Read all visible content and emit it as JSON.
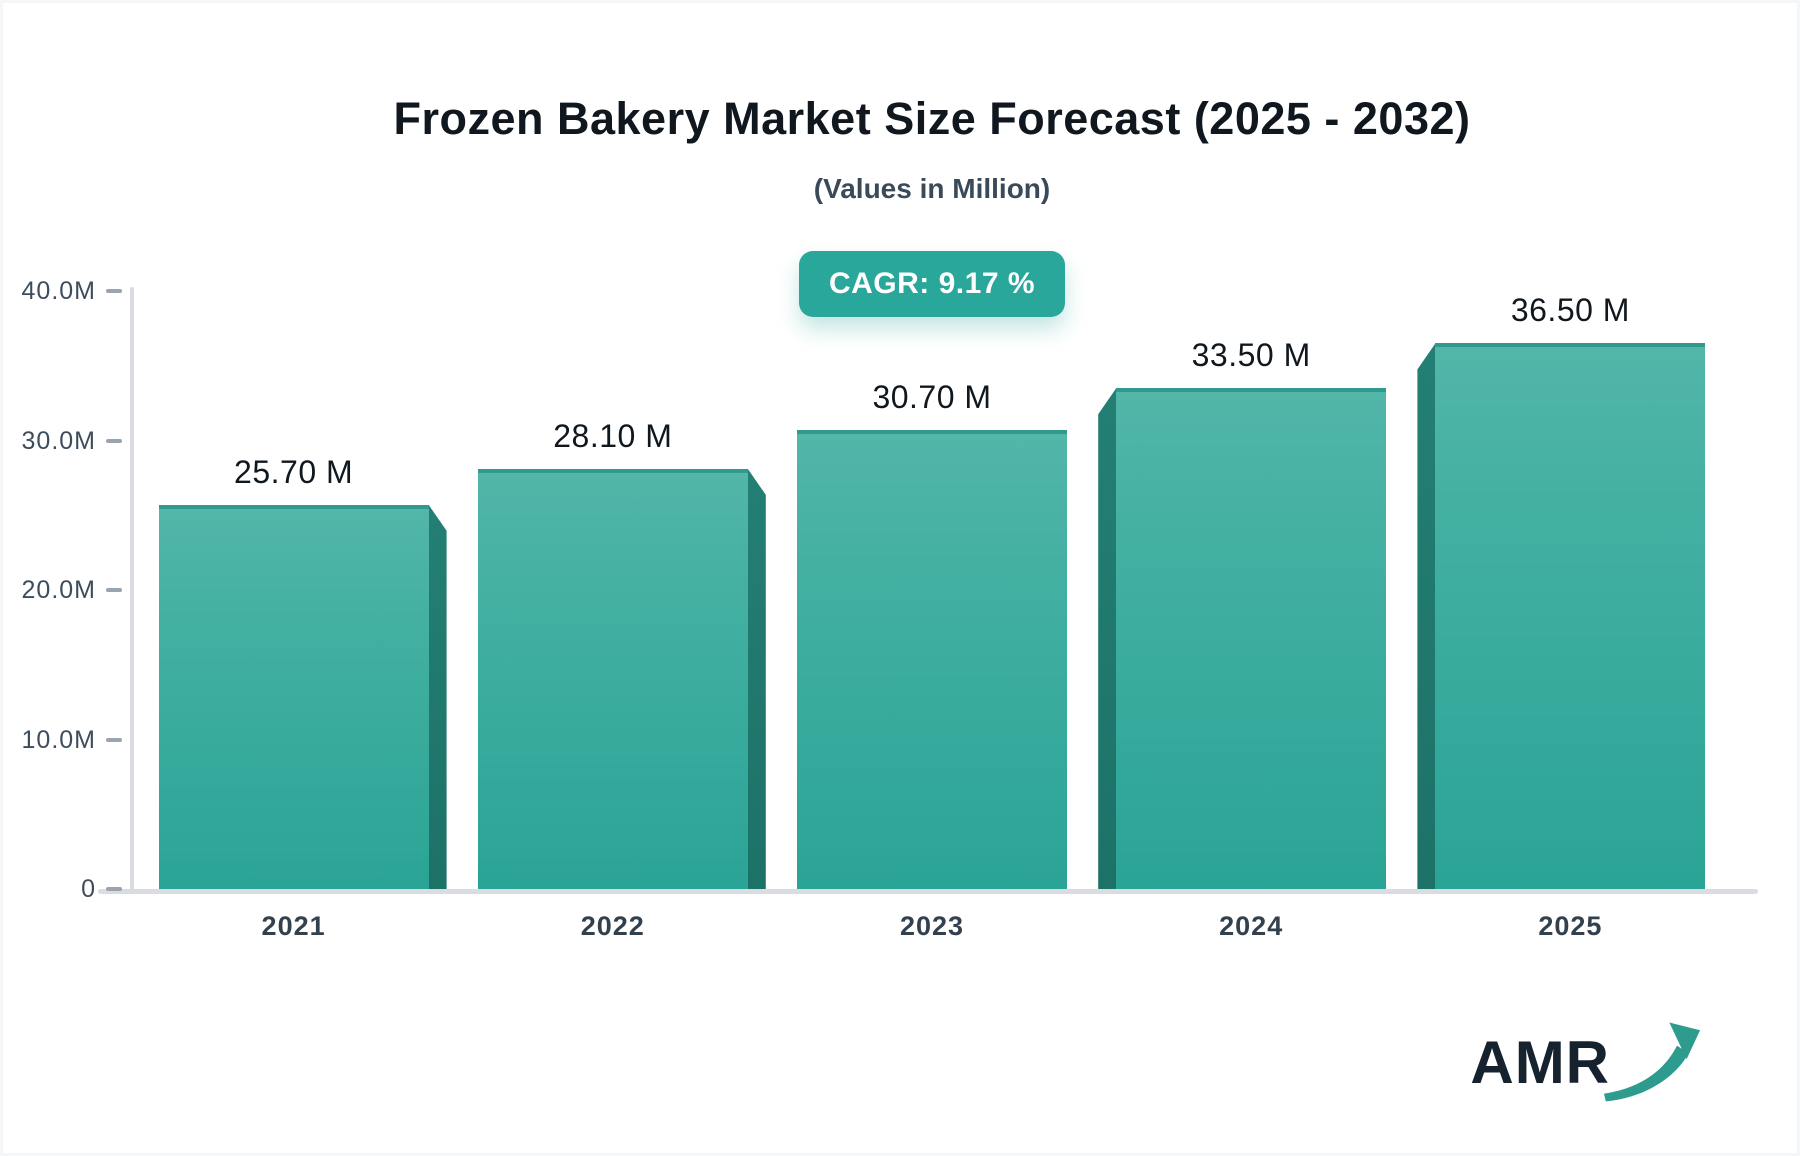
{
  "header": {
    "title": "Frozen Bakery Market Size Forecast (2025 - 2032)",
    "subtitle": "(Values in Million)"
  },
  "badge": {
    "label": "CAGR: 9.17 %"
  },
  "chart_data": {
    "type": "bar",
    "title": "Frozen Bakery Market Size Forecast (2025 - 2032)",
    "subtitle": "(Values in Million)",
    "unit": "Million",
    "cagr": "9.17 %",
    "categories": [
      "2021",
      "2022",
      "2023",
      "2024",
      "2025"
    ],
    "values": [
      25.7,
      28.1,
      30.7,
      33.5,
      36.5
    ],
    "value_labels": [
      "25.70 M",
      "28.10 M",
      "30.70 M",
      "33.50 M",
      "36.50 M"
    ],
    "xlabel": "",
    "ylabel": "",
    "ylim": [
      0,
      40
    ],
    "yticks": [
      {
        "value": 40,
        "label": "40.0M"
      },
      {
        "value": 30,
        "label": "30.0M"
      },
      {
        "value": 20,
        "label": "20.0M"
      },
      {
        "value": 10,
        "label": "10.0M"
      },
      {
        "value": 0,
        "label": "0"
      }
    ],
    "grid": false,
    "legend": false,
    "layout": {
      "extrude": [
        "right",
        "right",
        "none",
        "left",
        "left"
      ],
      "bar_face_top": "#52b6a9",
      "bar_face_bottom": "#2aa496",
      "bar_side_color": "#207a6f",
      "bar_top_border": "#2f9a8d",
      "axis_line_color": "#d9dce1",
      "y_tick_text_color": "#3e4d5d",
      "category_text_color": "#33414f",
      "value_text_color": "#10181f",
      "badge_color": "#2aa79b"
    }
  },
  "logo": {
    "text": "AMR",
    "text_color": "#16222e",
    "arrow_color": "#2e9b8f"
  }
}
